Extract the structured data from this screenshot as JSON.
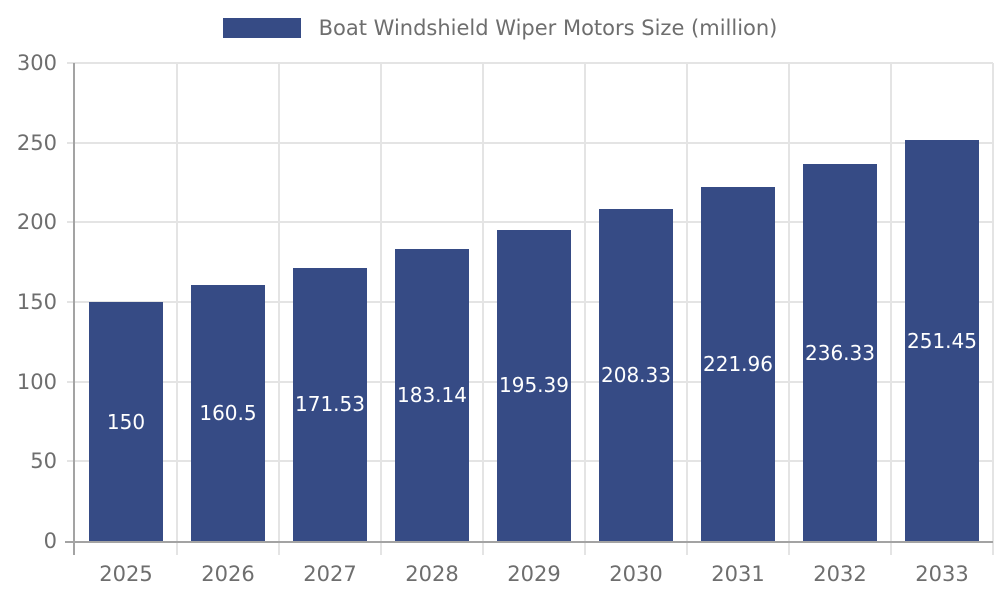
{
  "legend": {
    "label": "Boat Windshield Wiper Motors Size (million)",
    "swatch_color": "#364B85"
  },
  "chart_data": {
    "type": "bar",
    "title": "Boat Windshield Wiper Motors Size (million)",
    "categories": [
      "2025",
      "2026",
      "2027",
      "2028",
      "2029",
      "2030",
      "2031",
      "2032",
      "2033"
    ],
    "values": [
      150,
      160.5,
      171.53,
      183.14,
      195.39,
      208.33,
      221.96,
      236.33,
      251.45
    ],
    "value_labels": [
      "150",
      "160.5",
      "171.53",
      "183.14",
      "195.39",
      "208.33",
      "221.96",
      "236.33",
      "251.45"
    ],
    "xlabel": "",
    "ylabel": "",
    "ylim": [
      0,
      300
    ],
    "yticks": [
      0,
      50,
      100,
      150,
      200,
      250,
      300
    ],
    "grid": true,
    "legend_position": "top-center",
    "bar_color": "#364B85",
    "value_label_color": "#ffffff",
    "axis_color": "#a3a3a3",
    "grid_color": "#e4e4e4",
    "tick_label_color": "#6e6e6e"
  }
}
